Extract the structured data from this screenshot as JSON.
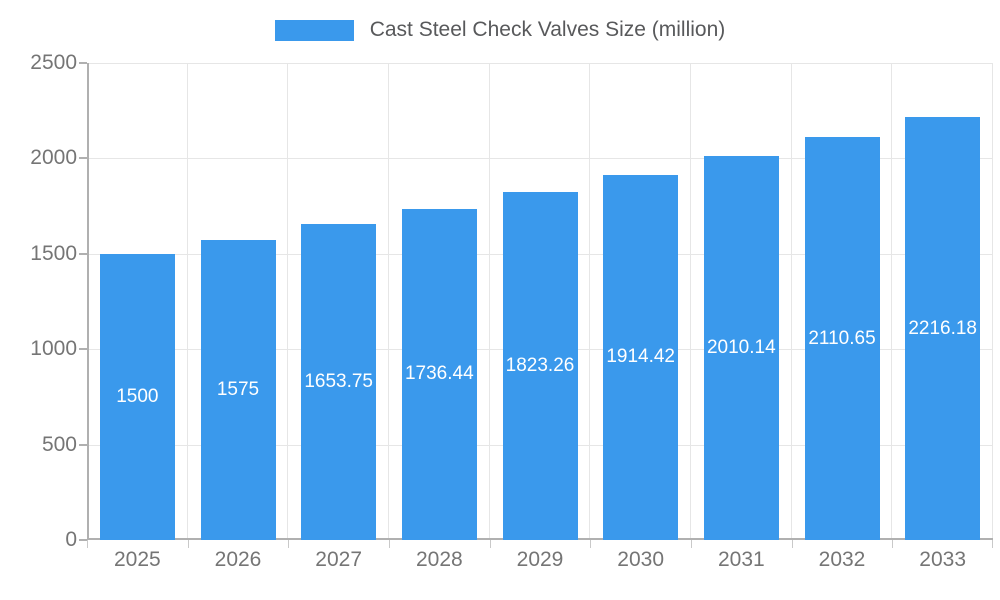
{
  "chart": {
    "legend": {
      "label": "Cast Steel Check Valves Size (million)"
    },
    "colors": {
      "bar": "#3A99EC",
      "grid": "#e6e6e6",
      "axis": "#b0b0b0",
      "tick_label": "#757575",
      "legend_text": "#58595B",
      "bar_label": "#ffffff",
      "background": "#ffffff"
    }
  },
  "chart_data": {
    "type": "bar",
    "title": "Cast Steel Check Valves Size (million)",
    "categories": [
      "2025",
      "2026",
      "2027",
      "2028",
      "2029",
      "2030",
      "2031",
      "2032",
      "2033"
    ],
    "values": [
      1500,
      1575,
      1653.75,
      1736.44,
      1823.26,
      1914.42,
      2010.14,
      2110.65,
      2216.18
    ],
    "value_labels": [
      "1500",
      "1575",
      "1653.75",
      "1736.44",
      "1823.26",
      "1914.42",
      "2010.14",
      "2110.65",
      "2216.18"
    ],
    "series": [
      {
        "name": "Cast Steel Check Valves Size (million)",
        "values": [
          1500,
          1575,
          1653.75,
          1736.44,
          1823.26,
          1914.42,
          2010.14,
          2110.65,
          2216.18
        ]
      }
    ],
    "xlabel": "",
    "ylabel": "",
    "ylim": [
      0,
      2500
    ],
    "yticks": [
      0,
      500,
      1000,
      1500,
      2000,
      2500
    ],
    "grid": true,
    "legend_position": "top",
    "bar_color": "#3A99EC"
  }
}
